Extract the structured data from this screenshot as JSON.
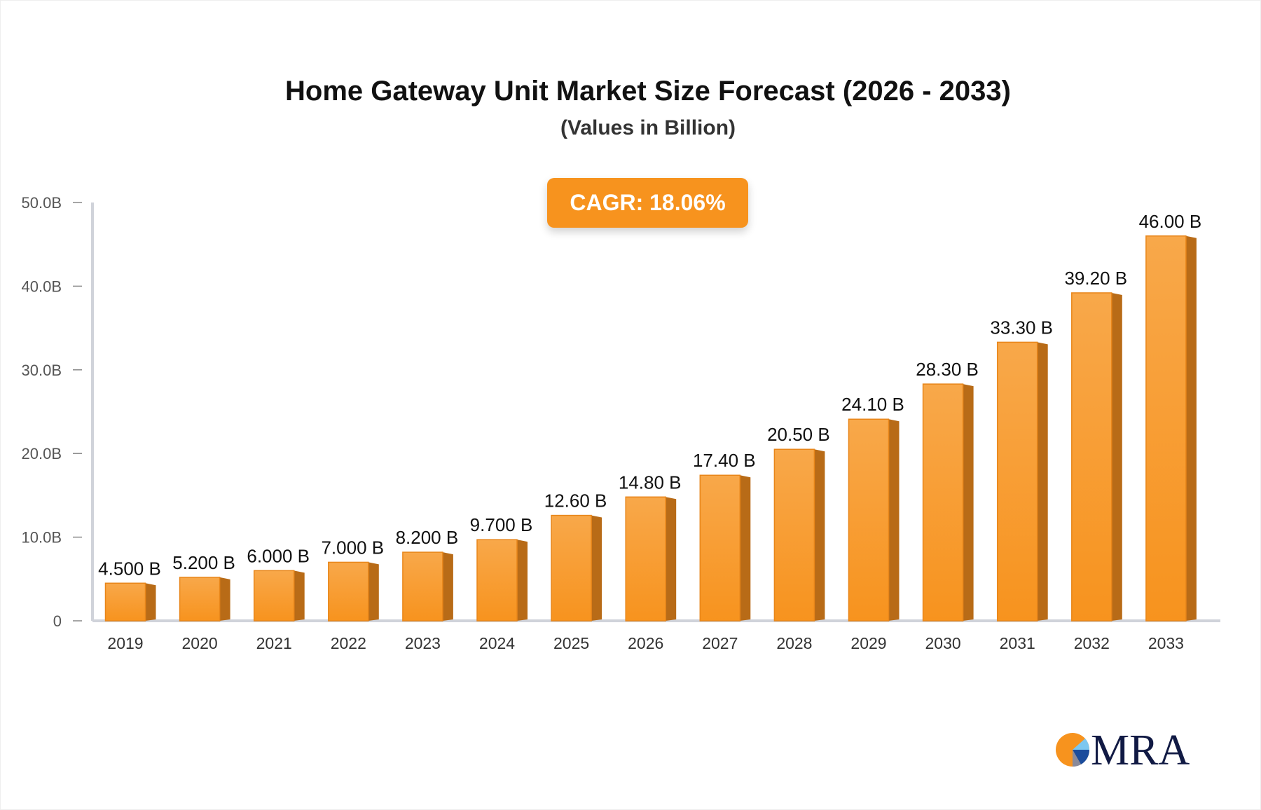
{
  "chart_data": {
    "type": "bar",
    "title": "Home Gateway Unit Market Size Forecast (2026 - 2033)",
    "subtitle": "(Values in Billion)",
    "annotation": "CAGR: 18.06%",
    "categories": [
      "2019",
      "2020",
      "2021",
      "2022",
      "2023",
      "2024",
      "2025",
      "2026",
      "2027",
      "2028",
      "2029",
      "2030",
      "2031",
      "2032",
      "2033"
    ],
    "values": [
      4.5,
      5.2,
      6.0,
      7.0,
      8.2,
      9.7,
      12.6,
      14.8,
      17.4,
      20.5,
      24.1,
      28.3,
      33.3,
      39.2,
      46.0
    ],
    "data_labels": [
      "4.500 B",
      "5.200 B",
      "6.000 B",
      "7.000 B",
      "8.200 B",
      "9.700 B",
      "12.60 B",
      "14.80 B",
      "17.40 B",
      "20.50 B",
      "24.10 B",
      "28.30 B",
      "33.30 B",
      "39.20 B",
      "46.00 B"
    ],
    "yticks": [
      0,
      10,
      20,
      30,
      40,
      50
    ],
    "ytick_labels": [
      "0",
      "10.0B",
      "20.0B",
      "30.0B",
      "40.0B",
      "50.0B"
    ],
    "ylim": [
      0,
      50
    ],
    "xlabel": "",
    "ylabel": "",
    "grid": false,
    "colors": {
      "bar_front": "#f7931e",
      "bar_side": "#b86b17",
      "axis": "#d0d3da"
    }
  },
  "logo": {
    "text": "MRA"
  }
}
